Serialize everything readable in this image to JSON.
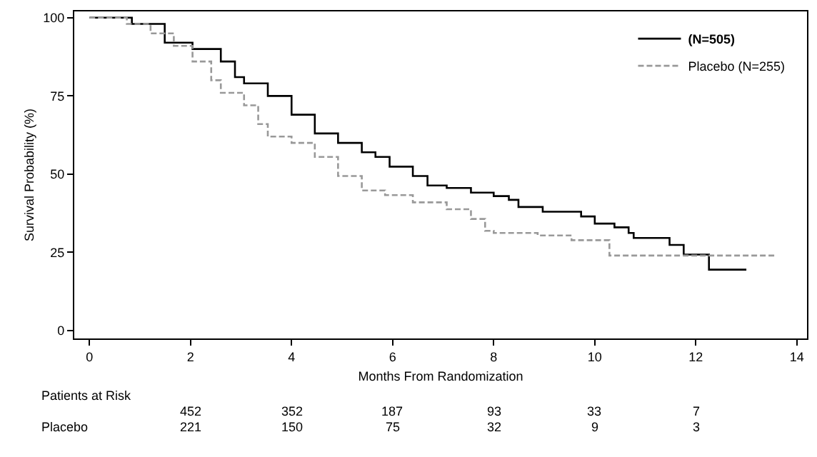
{
  "chart_data": {
    "type": "step",
    "xlabel": "Months From Randomization",
    "ylabel": "Survival Probability (%)",
    "xlim": [
      -0.3,
      14.2
    ],
    "xticks": [
      0,
      2,
      4,
      6,
      8,
      10,
      12,
      14
    ],
    "ylim": [
      -2.5,
      102
    ],
    "yticks": [
      0,
      25,
      50,
      75,
      100
    ],
    "legend": "top right",
    "marker": "none",
    "series": [
      {
        "name": "(N=505)",
        "color": "#000000",
        "line_style": "solid",
        "x": [
          0,
          0.84,
          1.49,
          2.04,
          2.6,
          2.88,
          3.06,
          3.53,
          4.0,
          4.46,
          4.92,
          5.39,
          5.66,
          5.94,
          6.4,
          6.69,
          7.07,
          7.55,
          8.0,
          8.3,
          8.49,
          8.97,
          9.73,
          10.0,
          10.39,
          10.67,
          10.77,
          11.48,
          11.76,
          12.26,
          13.0
        ],
        "values": [
          100,
          98,
          92,
          90,
          86,
          81,
          79,
          75,
          69,
          63,
          60,
          57,
          55.5,
          52.4,
          49.4,
          46.4,
          45.6,
          44.1,
          43,
          41.8,
          39.5,
          38,
          36.5,
          34.2,
          33,
          31.2,
          29.6,
          27.4,
          24.3,
          19.5,
          19.5
        ]
      },
      {
        "name": "Placebo (N=255)",
        "color": "#999999",
        "line_style": "dashed",
        "x": [
          0,
          0.74,
          1.21,
          1.67,
          2.04,
          2.41,
          2.6,
          3.06,
          3.34,
          3.53,
          4.0,
          4.46,
          4.92,
          5.39,
          5.85,
          6.4,
          7.07,
          7.55,
          7.83,
          8.0,
          8.87,
          9.54,
          10.29,
          13.56
        ],
        "values": [
          100,
          98,
          95,
          91,
          86,
          80,
          76,
          72,
          66,
          62,
          60,
          55.5,
          49.4,
          44.8,
          43.3,
          41,
          38.8,
          35.7,
          31.9,
          31.2,
          30.4,
          28.9,
          24,
          24
        ]
      }
    ],
    "annotations": [
      "Patients at Risk",
      "452",
      "352",
      "187",
      "93",
      "33",
      "7",
      "Placebo",
      "221",
      "150",
      "75",
      "32",
      "9",
      "3"
    ]
  }
}
